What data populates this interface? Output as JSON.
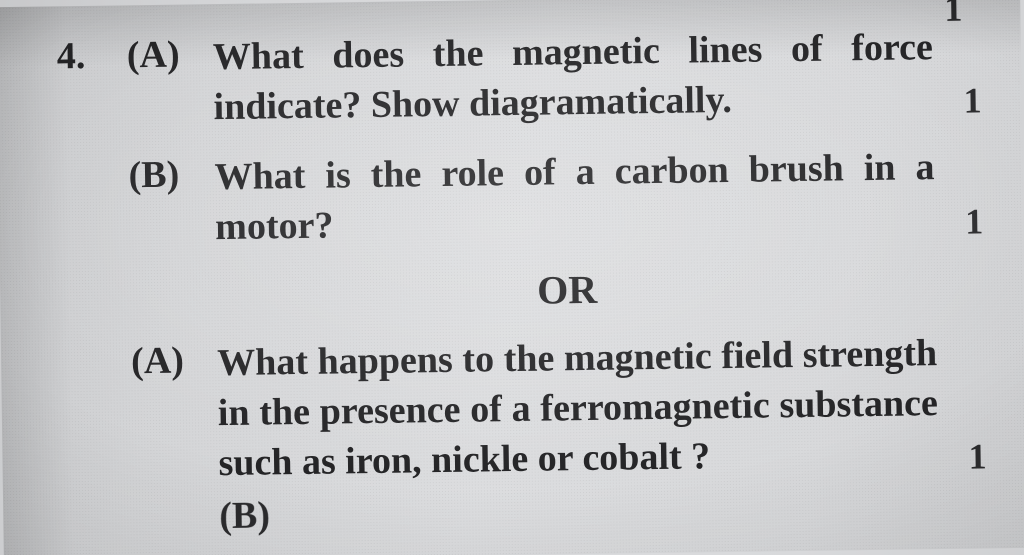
{
  "page": {
    "background_color": "#d5d6d8",
    "text_color": "#2a2a2c",
    "font_family": "serif",
    "base_font_size_pt": 28,
    "rotation_deg": -0.8
  },
  "stray_top_right": "1",
  "question": {
    "number": "4.",
    "parts_primary": [
      {
        "label": "(A)",
        "text": "What does the magnetic lines of force indicate? Show diagramatically.",
        "marks": "1"
      },
      {
        "label": "(B)",
        "text": "What is the role of a carbon brush in a motor?",
        "marks": "1"
      }
    ],
    "or_label": "OR",
    "parts_alt": [
      {
        "label": "(A)",
        "text": "What happens to the magnetic field strength in the presence of a ferromagnetic substance such as iron, nickle or cobalt ?",
        "marks": "1"
      }
    ]
  },
  "cut_off_fragment": "(B)"
}
